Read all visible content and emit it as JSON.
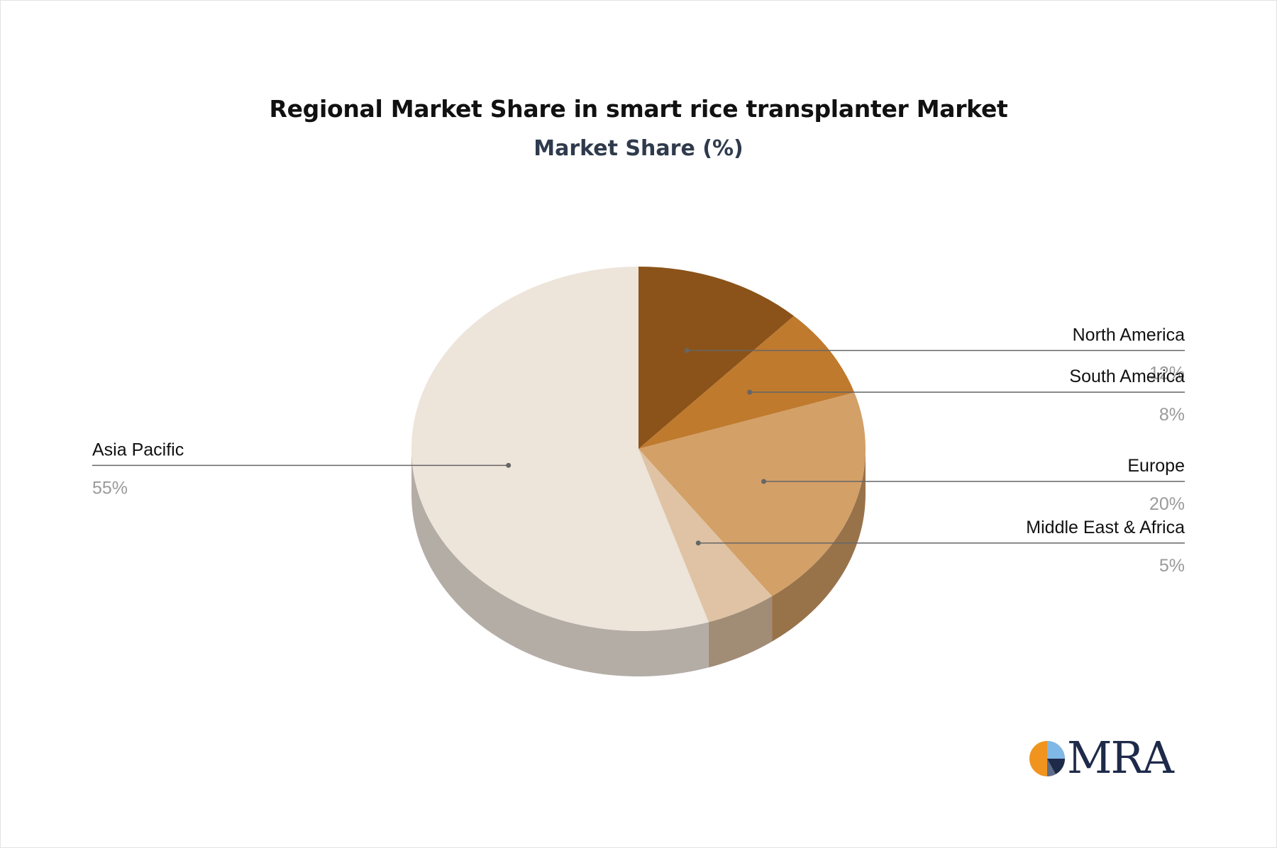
{
  "title": "Regional Market Share in smart rice transplanter Market",
  "subtitle": "Market Share (%)",
  "logo": {
    "text": "MRA",
    "colors": {
      "orange": "#f0941f",
      "navy": "#1e2a4a",
      "light_blue": "#7fb8e6"
    }
  },
  "chart_data": {
    "type": "pie",
    "style": "3d",
    "title": "Regional Market Share in smart rice transplanter Market",
    "subtitle": "Market Share (%)",
    "slices": [
      {
        "label": "North America",
        "value": 12,
        "display": "12%",
        "color": "#8b5319"
      },
      {
        "label": "South America",
        "value": 8,
        "display": "8%",
        "color": "#bf7a2e"
      },
      {
        "label": "Europe",
        "value": 20,
        "display": "20%",
        "color": "#d3a067"
      },
      {
        "label": "Middle East & Africa",
        "value": 5,
        "display": "5%",
        "color": "#dfc3a4"
      },
      {
        "label": "Asia Pacific",
        "value": 55,
        "display": "55%",
        "color": "#ede4da"
      }
    ],
    "label_color": "#111111",
    "value_color": "#9a9a9a",
    "leader_line_color": "#666666"
  }
}
